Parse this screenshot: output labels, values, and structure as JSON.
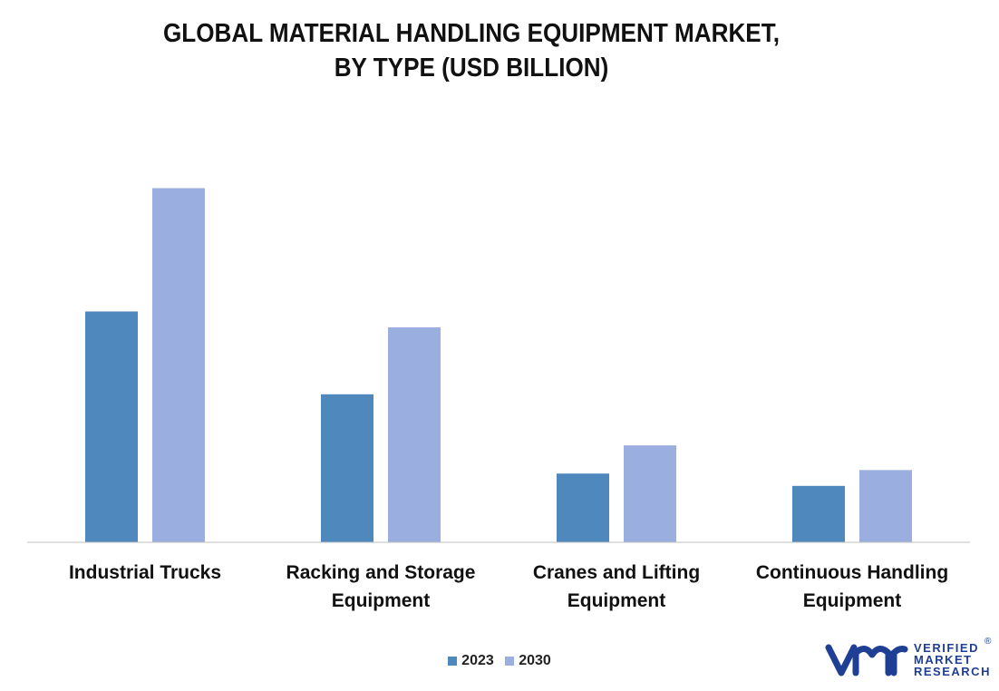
{
  "colors": {
    "series_2023": "#4f88bd",
    "series_2030": "#9aaedf",
    "axis": "#bfbfbf",
    "logo": "#1f3f95"
  },
  "chart_data": {
    "type": "bar",
    "title": [
      "GLOBAL MATERIAL HANDLING EQUIPMENT MARKET,",
      "BY TYPE (USD BILLION)"
    ],
    "categories": [
      [
        "Industrial Trucks"
      ],
      [
        "Racking and Storage",
        "Equipment"
      ],
      [
        "Cranes and Lifting",
        "Equipment"
      ],
      [
        "Continuous Handling",
        "Equipment"
      ]
    ],
    "series": [
      {
        "name": "2023",
        "values": [
          131,
          84,
          39,
          32
        ]
      },
      {
        "name": "2030",
        "values": [
          201,
          122,
          55,
          41
        ]
      }
    ],
    "ylim": [
      0,
      210
    ],
    "grid": false,
    "legend": "bottom-center"
  },
  "logo": {
    "lines": [
      "VERIFIED",
      "MARKET",
      "RESEARCH"
    ],
    "reg_mark": "®"
  }
}
